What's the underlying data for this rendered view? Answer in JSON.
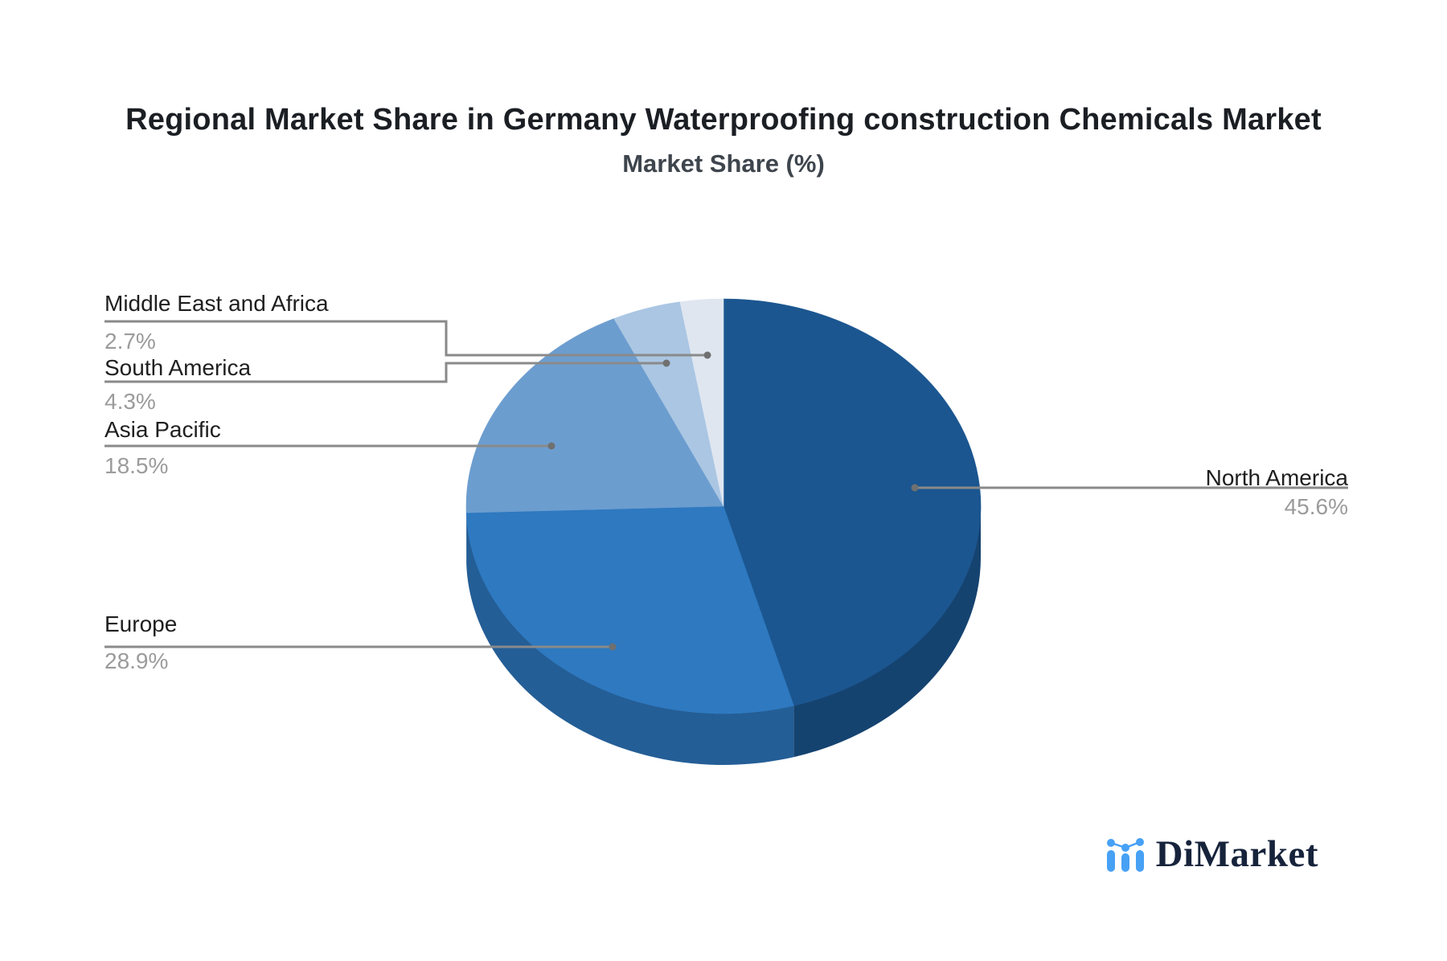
{
  "header": {
    "title": "Regional Market Share in Germany Waterproofing construction Chemicals Market",
    "subtitle": "Market Share (%)"
  },
  "chart_data": {
    "type": "pie",
    "style": "3d-depth",
    "title": "Regional Market Share in Germany Waterproofing construction Chemicals Market",
    "subtitle": "Market Share (%)",
    "unit": "%",
    "start_angle_deg": -90,
    "direction": "clockwise",
    "legend_position": "callout-labels",
    "series": [
      {
        "name": "North America",
        "value": 45.6,
        "color": "#1b5690"
      },
      {
        "name": "Europe",
        "value": 28.9,
        "color": "#2e79c0"
      },
      {
        "name": "Asia Pacific",
        "value": 18.5,
        "color": "#6c9dcf"
      },
      {
        "name": "South America",
        "value": 4.3,
        "color": "#aac6e3"
      },
      {
        "name": "Middle East and Africa",
        "value": 2.7,
        "color": "#dfe6f0"
      }
    ]
  },
  "colors": {
    "leader_line": "#8a8a8a",
    "dot": "#707070",
    "label_name": "#1f1f1f",
    "label_value": "#9b9b9b"
  },
  "branding": {
    "logo_text": "DiMarket",
    "logo_icon": "bar-chart-trend-icon",
    "logo_text_color": "#16233b",
    "logo_icon_color": "#47a1f5"
  }
}
